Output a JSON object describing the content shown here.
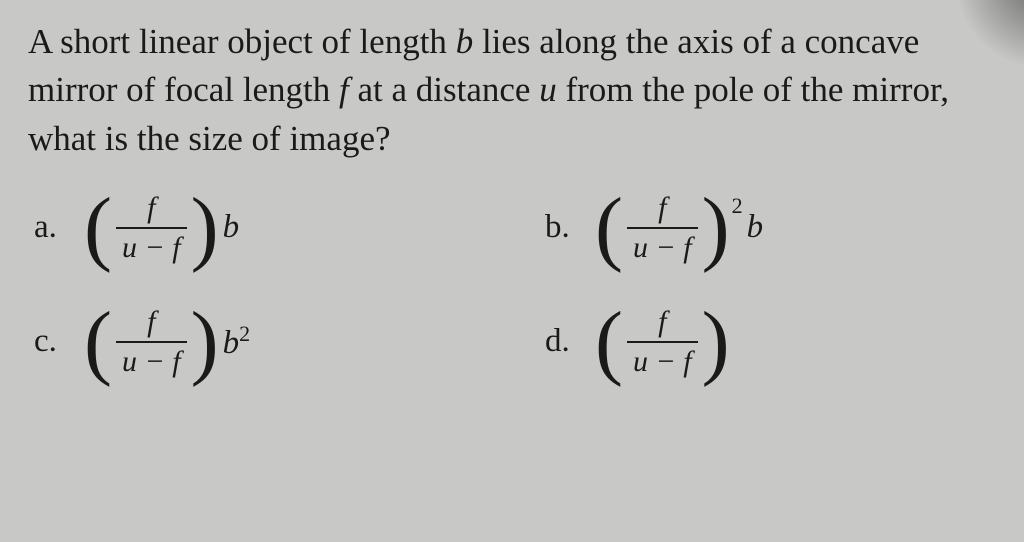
{
  "question": {
    "prefix": "A short linear object of length ",
    "var_b": "b",
    "mid1": " lies along the axis of a concave mirror of focal length ",
    "var_f": "f",
    "mid2": " at a distance ",
    "var_u": "u",
    "suffix": " from the pole of the mirror, what is the size of image?"
  },
  "frac": {
    "num": "f",
    "den": "u − f"
  },
  "options": {
    "a": {
      "label": "a.",
      "exp": "",
      "trail": "b"
    },
    "b": {
      "label": "b.",
      "exp": "2",
      "trail": "b"
    },
    "c": {
      "label": "c.",
      "exp": "",
      "trail": "b",
      "trailExp": "2"
    },
    "d": {
      "label": "d.",
      "exp": "",
      "trail": ""
    }
  },
  "style": {
    "bg": "#c8c8c6",
    "text": "#1a1a1a",
    "font": "Times New Roman"
  }
}
